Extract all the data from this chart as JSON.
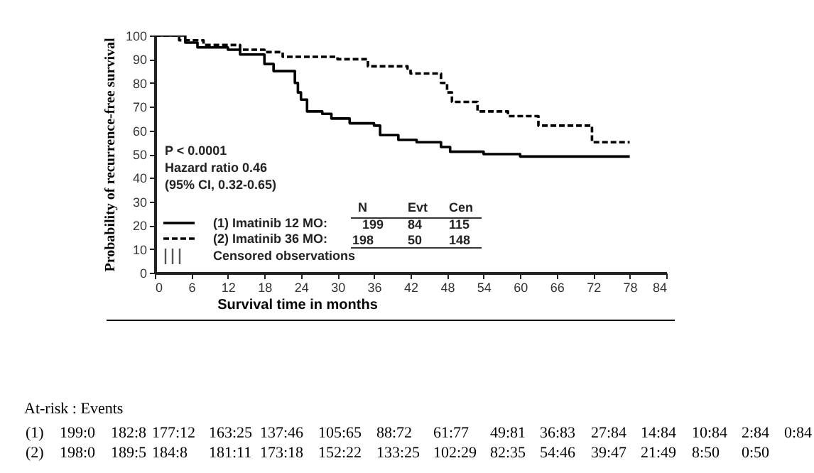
{
  "chart_data": {
    "type": "step",
    "xlabel": "Survival time in months",
    "ylabel": "Probability of recurrence-free survival",
    "xlim": [
      0,
      84
    ],
    "xticks": [
      0,
      6,
      12,
      18,
      24,
      30,
      36,
      42,
      48,
      54,
      60,
      66,
      72,
      78,
      84
    ],
    "ylim": [
      0,
      100
    ],
    "yticks": [
      0,
      10,
      20,
      30,
      40,
      50,
      60,
      70,
      80,
      90,
      100
    ],
    "grid": false,
    "legend": "bottom left",
    "series": [
      {
        "name": "(1) Imatinib 12 MO:",
        "color": "#000000",
        "line_style": "solid",
        "x": [
          0,
          5,
          7,
          12,
          14,
          18,
          19.5,
          23,
          23.5,
          24,
          25,
          27.5,
          29,
          32,
          36,
          37,
          40,
          43,
          47,
          48.5,
          54,
          60,
          78
        ],
        "values": [
          100,
          97,
          95,
          94,
          92,
          88,
          85,
          80,
          76,
          73,
          68,
          67,
          65,
          63,
          62,
          58,
          56,
          55,
          53,
          51,
          50,
          49,
          49
        ]
      },
      {
        "name": "(2) Imatinib 36 MO:",
        "color": "#000000",
        "line_style": "dashed",
        "x": [
          0,
          4,
          8,
          14,
          18,
          21,
          30,
          35,
          41.5,
          42,
          47,
          48,
          48.8,
          53,
          58,
          63,
          71.8,
          78
        ],
        "values": [
          100,
          98,
          96,
          94,
          93,
          91,
          90,
          87,
          86,
          84,
          80,
          76,
          72,
          68,
          66,
          62,
          55,
          55
        ]
      }
    ],
    "annotations": [
      "P < 0.0001",
      "Hazard ratio 0.46",
      "(95% CI, 0.32-0.65)",
      "Censored observations",
      "N",
      "Evt",
      "Cen",
      "199",
      "84",
      "115",
      "198",
      "50",
      "148",
      "At-risk : Events",
      "(1)",
      "199:0",
      "182:8",
      "177:12",
      "163:25",
      "137:46",
      "105:65",
      "88:72",
      "61:77",
      "49:81",
      "36:83",
      "27:84",
      "14:84",
      "10:84",
      "2:84",
      "0:84",
      "(2)",
      "198:0",
      "189:5",
      "184:8",
      "181:11",
      "173:18",
      "152:22",
      "133:25",
      "102:29",
      "82:35",
      "54:46",
      "39:47",
      "21:49",
      "8:50",
      "0:50"
    ]
  }
}
